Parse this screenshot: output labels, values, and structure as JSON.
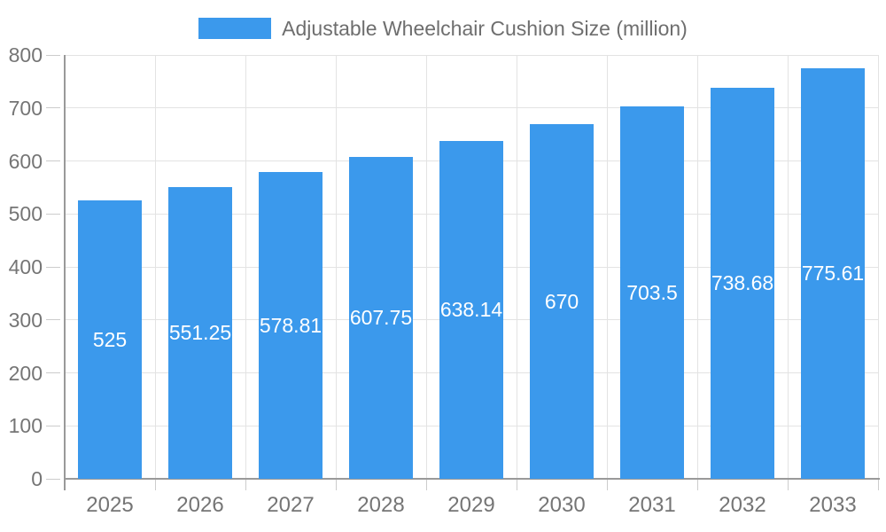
{
  "legend": {
    "label": "Adjustable Wheelchair Cushion Size (million)",
    "swatch_color": "#3b99ec"
  },
  "chart_data": {
    "type": "bar",
    "title": "Adjustable Wheelchair Cushion Size (million)",
    "categories": [
      "2025",
      "2026",
      "2027",
      "2028",
      "2029",
      "2030",
      "2031",
      "2032",
      "2033"
    ],
    "values": [
      525,
      551.25,
      578.81,
      607.75,
      638.14,
      670,
      703.5,
      738.68,
      775.61
    ],
    "value_labels": [
      "525",
      "551.25",
      "578.81",
      "607.75",
      "638.14",
      "670",
      "703.5",
      "738.68",
      "775.61"
    ],
    "series_name": "Adjustable Wheelchair Cushion Size (million)",
    "xlabel": "",
    "ylabel": "",
    "ylim": [
      0,
      800
    ],
    "yticks": [
      0,
      100,
      200,
      300,
      400,
      500,
      600,
      700,
      800
    ],
    "grid": true,
    "legend_position": "top",
    "value_label_position": "inside-center",
    "colors": {
      "bar": "#3b99ec",
      "grid_line": "#e3e3e3",
      "axis_line": "#999999",
      "tick": "#cccccc",
      "axis_label_text": "#757575",
      "legend_text": "#6e6e6e",
      "bar_label_text": "#ffffff",
      "background": "#ffffff"
    }
  }
}
